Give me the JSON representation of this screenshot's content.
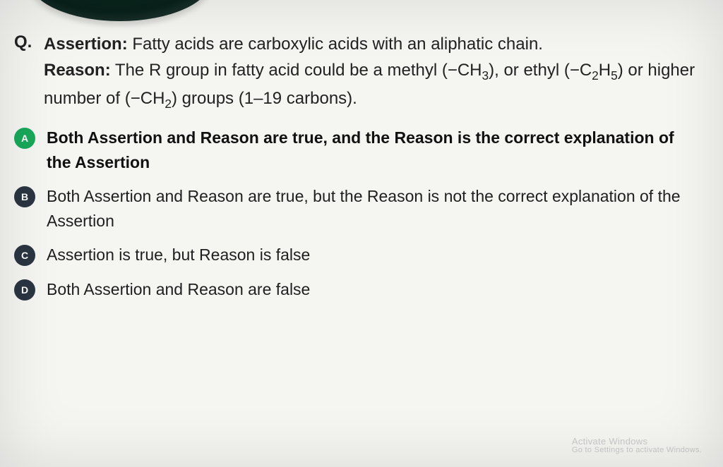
{
  "question": {
    "label": "Q.",
    "assertion_label": "Assertion:",
    "assertion_text": " Fatty acids are carboxylic acids with an aliphatic chain.",
    "reason_label": "Reason:",
    "reason_text_1": " The R group in fatty acid could be a methyl (−CH",
    "reason_sub_1": "3",
    "reason_text_2": "), or ethyl (−C",
    "reason_sub_2": "2",
    "reason_text_3": "H",
    "reason_sub_3": "5",
    "reason_text_4": ") or higher number of (−CH",
    "reason_sub_4": "2",
    "reason_text_5": ") groups (1–19 carbons)."
  },
  "options": [
    {
      "letter": "A",
      "text": "Both Assertion and Reason are true, and the Reason is the correct explanation of the Assertion",
      "selected": true
    },
    {
      "letter": "B",
      "text": "Both Assertion and Reason are true, but the Reason is not the correct explanation of the Assertion",
      "selected": false
    },
    {
      "letter": "C",
      "text": "Assertion is true, but Reason is false",
      "selected": false
    },
    {
      "letter": "D",
      "text": "Both Assertion and Reason are false",
      "selected": false
    }
  ],
  "watermark": {
    "line1": "Activate Windows",
    "line2": "Go to Settings to activate Windows."
  },
  "colors": {
    "selected_badge": "#18a85a",
    "badge": "#2b3542",
    "page_bg": "#f5f5f2",
    "text": "#222222"
  }
}
